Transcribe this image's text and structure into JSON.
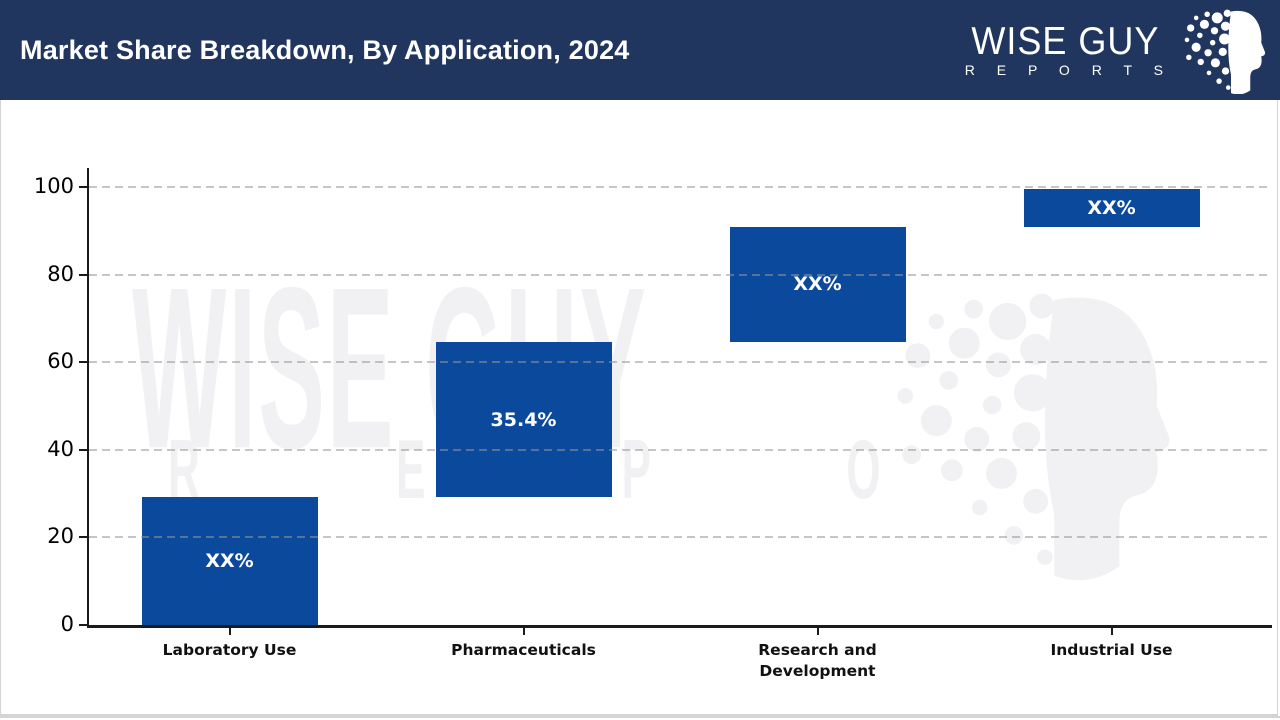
{
  "header": {
    "title": "Market Share Breakdown, By Application, 2024",
    "logo": {
      "line1": "WISE GUY",
      "line2": "R E P O R T S"
    }
  },
  "watermark": {
    "line1": "WISE GUY",
    "line2": "R E P O R T S"
  },
  "colors": {
    "header_bg": "#21365f",
    "bar": "#0b499d",
    "bar_label": "#ffffff",
    "grid": "#cccccc",
    "axis": "#1a1a1a",
    "watermark": "#f1f1f3"
  },
  "chart_data": {
    "type": "bar",
    "subtype": "waterfall-floating-bars",
    "title": "Market Share Breakdown, By Application, 2024",
    "categories": [
      "Laboratory Use",
      "Pharmaceuticals",
      "Research and Development",
      "Industrial Use"
    ],
    "segments": [
      {
        "category": "Laboratory Use",
        "start": 0,
        "end": 29.2,
        "label": "XX%"
      },
      {
        "category": "Pharmaceuticals",
        "start": 29.2,
        "end": 64.6,
        "label": "35.4%"
      },
      {
        "category": "Research and Development",
        "start": 64.6,
        "end": 90.9,
        "label": "XX%"
      },
      {
        "category": "Industrial Use",
        "start": 90.9,
        "end": 99.6,
        "label": "XX%"
      }
    ],
    "yticks": [
      0,
      20,
      40,
      60,
      80,
      100
    ],
    "ylim": [
      0,
      105
    ],
    "xlabel": "",
    "ylabel": "",
    "grid": "horizontal-dashed-over-bars",
    "legend": "none"
  }
}
